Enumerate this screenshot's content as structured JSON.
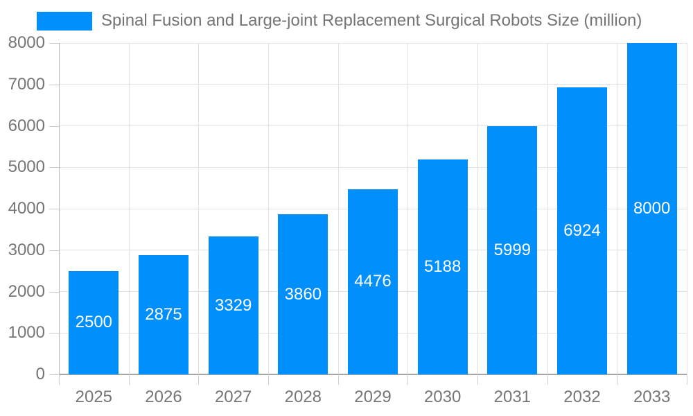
{
  "chart_data": {
    "type": "bar",
    "title": "",
    "legend": "Spinal Fusion and Large-joint Replacement Surgical Robots Size (million)",
    "categories": [
      "2025",
      "2026",
      "2027",
      "2028",
      "2029",
      "2030",
      "2031",
      "2032",
      "2033"
    ],
    "values": [
      2500,
      2875,
      3329,
      3860,
      4476,
      5188,
      5999,
      6924,
      8000
    ],
    "xlabel": "",
    "ylabel": "",
    "ylim": [
      0,
      8000
    ],
    "ytick_step": 1000,
    "ytick_labels": [
      "0",
      "1000",
      "2000",
      "3000",
      "4000",
      "5000",
      "6000",
      "7000",
      "8000"
    ],
    "grid": true,
    "legend_position": "top-left",
    "bar_labels_inside": true,
    "colors": {
      "bar": "#008FFB",
      "bar_label_text": "#ffffff",
      "axis_text": "#757575",
      "gridline": "#e2e2e2",
      "axis_line": "#a6a6a6"
    }
  }
}
